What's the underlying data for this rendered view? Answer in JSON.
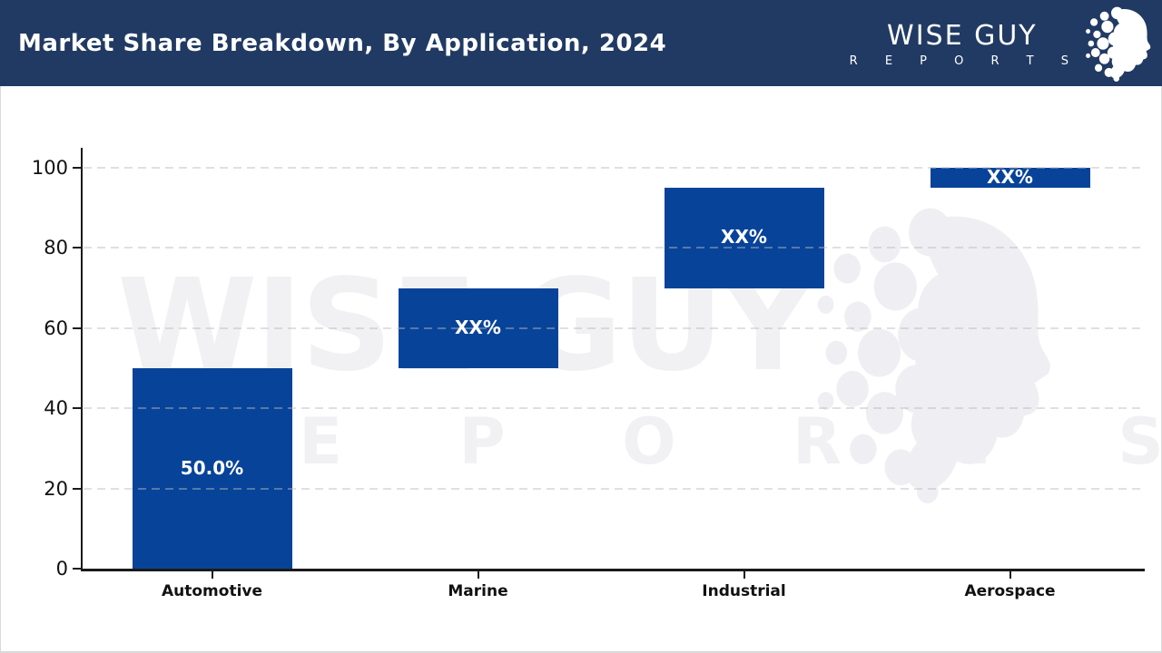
{
  "header": {
    "title": "Market Share Breakdown, By Application, 2024",
    "logo": {
      "name_line": "WISE GUY",
      "sub_line": "R E P O R T S"
    }
  },
  "watermark": {
    "name_line": "WISE GUY",
    "sub_line": "R E P O R T S"
  },
  "chart_data": {
    "type": "bar",
    "subtype": "floating-segment-waterfall",
    "title": "Market Share Breakdown, By Application, 2024",
    "categories": [
      "Automotive",
      "Marine",
      "Industrial",
      "Aerospace"
    ],
    "bars": [
      {
        "category": "Automotive",
        "start": 0,
        "end": 50,
        "label": "50.0%"
      },
      {
        "category": "Marine",
        "start": 50,
        "end": 70,
        "label": "XX%"
      },
      {
        "category": "Industrial",
        "start": 70,
        "end": 95,
        "label": "XX%"
      },
      {
        "category": "Aerospace",
        "start": 95,
        "end": 100,
        "label": "XX%"
      }
    ],
    "xlabel": "",
    "ylabel": "",
    "ylim": [
      0,
      100
    ],
    "yticks": [
      0,
      20,
      40,
      60,
      80,
      100
    ],
    "grid": true,
    "grid_style": "dashed",
    "legend": false,
    "bar_color": "#08439A",
    "bar_label_color": "#ffffff"
  },
  "colors": {
    "header_bg": "#213A63",
    "axis": "#1a1a1a",
    "gridline": "#e0e0e0",
    "watermark": "#f1f1f4"
  }
}
